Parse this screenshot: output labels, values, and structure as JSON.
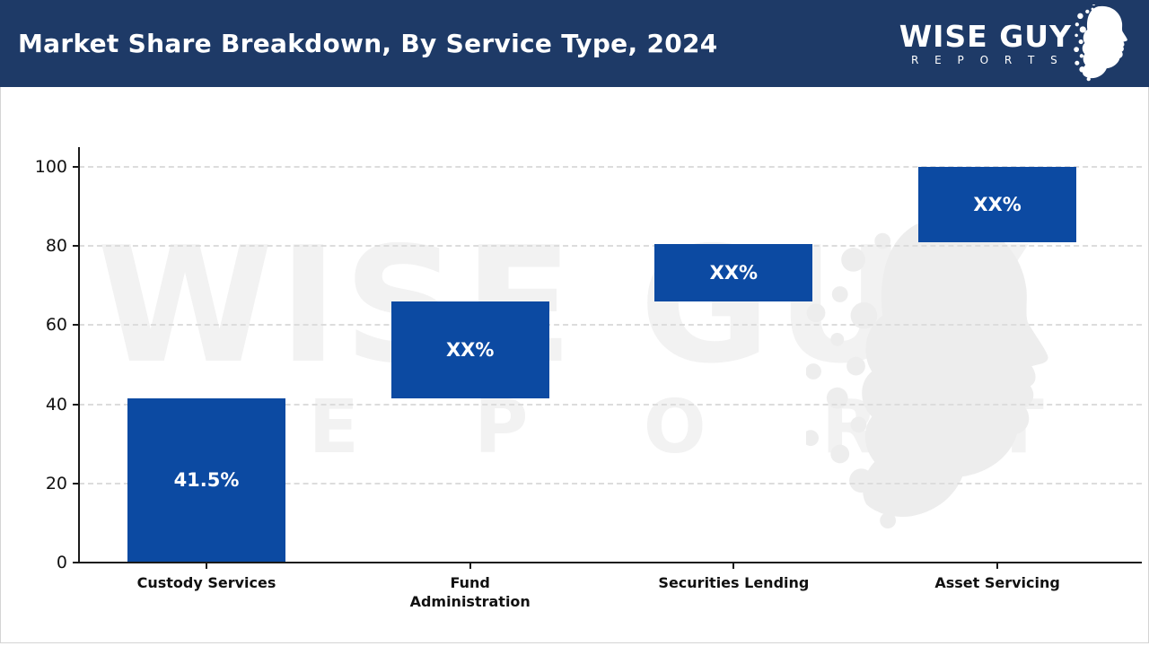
{
  "header": {
    "title": "Market Share Breakdown, By Service Type, 2024"
  },
  "logo": {
    "brand": "WISE GUY",
    "sub": "R E P O R T S"
  },
  "watermark": {
    "line1": "WISE GUY",
    "line2": "R E P O R T S"
  },
  "chart_data": {
    "type": "bar",
    "subtype": "waterfall-floating-bars",
    "title": "Market Share Breakdown, By Service Type, 2024",
    "categories": [
      "Custody Services",
      "Fund\nAdministration",
      "Securities Lending",
      "Asset Servicing"
    ],
    "series": [
      {
        "name": "Market Share (%)",
        "segments": [
          {
            "category": "Custody Services",
            "start": 0,
            "end": 41.5,
            "label": "41.5%"
          },
          {
            "category": "Fund Administration",
            "start": 41.5,
            "end": 66,
            "label": "XX%"
          },
          {
            "category": "Securities Lending",
            "start": 66,
            "end": 80.5,
            "label": "XX%"
          },
          {
            "category": "Asset Servicing",
            "start": 81,
            "end": 100,
            "label": "XX%"
          }
        ]
      }
    ],
    "xlabel": "",
    "ylabel": "",
    "ylim": [
      0,
      100
    ],
    "yticks": [
      0,
      20,
      40,
      60,
      80,
      100
    ],
    "grid": "horizontal-dashed",
    "legend": "none"
  },
  "colors": {
    "header_bg": "#1e3a67",
    "bar": "#0c4aa2",
    "bar_label": "#ffffff",
    "grid": "#dcdcdc",
    "axis": "#1a1a1a",
    "tick_text": "#111111",
    "watermark": "#f2f2f2",
    "title_text": "#ffffff"
  }
}
